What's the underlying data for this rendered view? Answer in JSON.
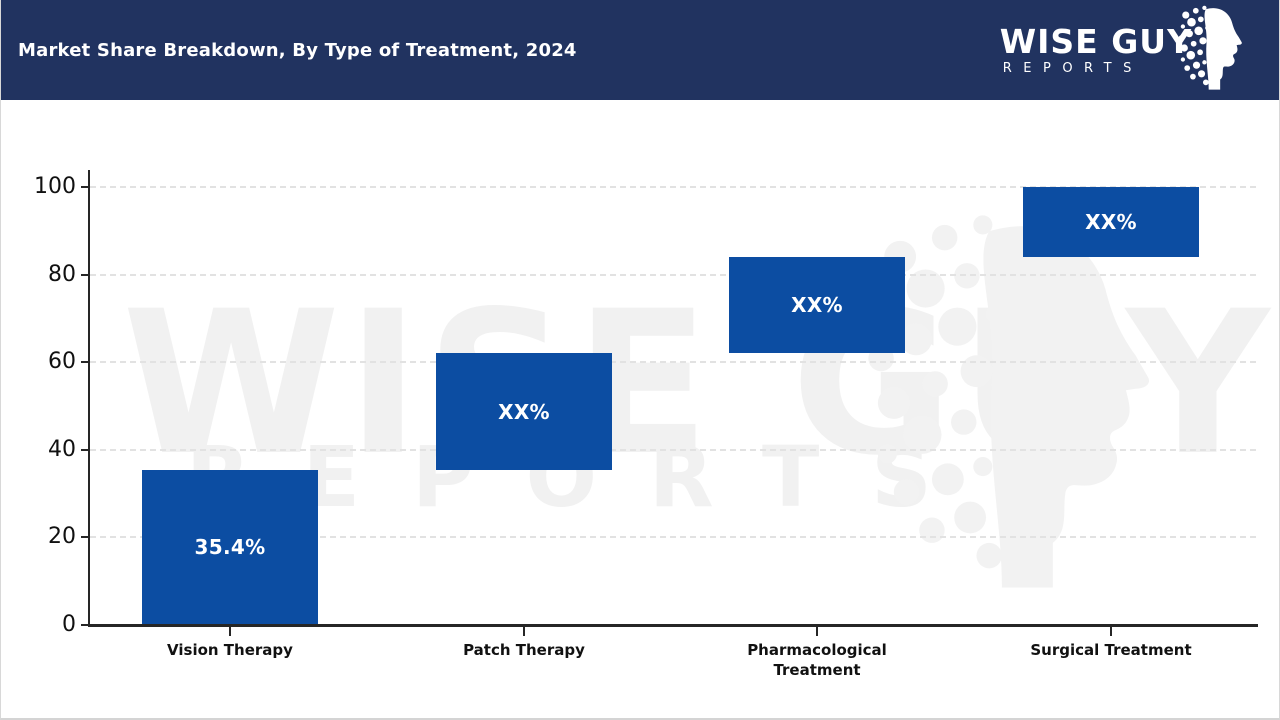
{
  "header": {
    "title": "Market Share Breakdown, By Type of Treatment, 2024",
    "bg_color": "#213360",
    "logo": {
      "primary": "WISE GUY",
      "secondary": "REPORTS"
    }
  },
  "watermark": {
    "primary": "WISE GUY",
    "secondary": "REPORTS"
  },
  "chart_data": {
    "type": "bar",
    "subtype": "waterfall",
    "title": "Market Share Breakdown, By Type of Treatment, 2024",
    "categories": [
      "Vision Therapy",
      "Patch Therapy",
      "Pharmacological Treatment",
      "Surgical Treatment"
    ],
    "segments": [
      {
        "category": "Vision Therapy",
        "start": 0,
        "end": 35.4,
        "label": "35.4%"
      },
      {
        "category": "Patch Therapy",
        "start": 35.4,
        "end": 62,
        "label": "XX%"
      },
      {
        "category": "Pharmacological Treatment",
        "start": 62,
        "end": 84,
        "label": "XX%"
      },
      {
        "category": "Surgical Treatment",
        "start": 84,
        "end": 100,
        "label": "XX%"
      }
    ],
    "ylim": [
      0,
      100
    ],
    "yticks": [
      0,
      20,
      40,
      60,
      80,
      100
    ],
    "ytick_labels": [
      "0",
      "20",
      "40",
      "60",
      "80",
      "100"
    ],
    "grid": true,
    "legend": false,
    "xlabel": "",
    "ylabel": "",
    "bar_color": "#0c4da2",
    "bar_label_color": "#ffffff"
  }
}
